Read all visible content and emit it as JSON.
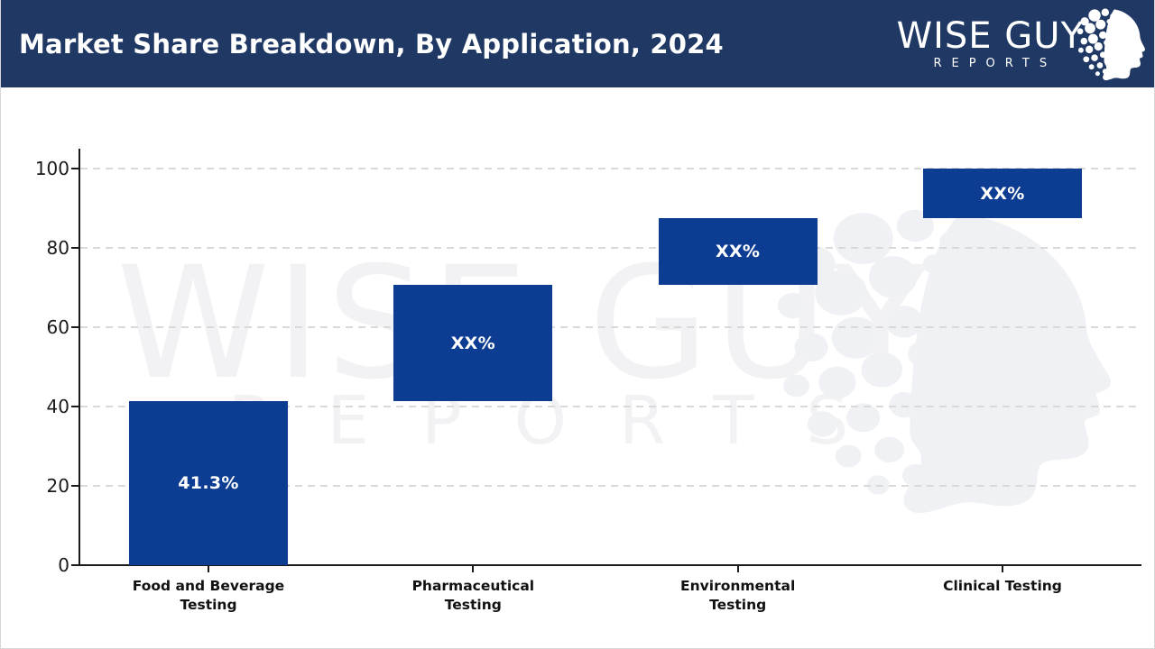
{
  "header": {
    "title": "Market Share Breakdown, By Application, 2024"
  },
  "logo": {
    "wordmark": "WISE GUY",
    "subtext": "REPORTS",
    "head_icon": "dotted-head-profile"
  },
  "watermark": {
    "line1": "WISE GUY",
    "line2": "REPORTS",
    "head_icon": "dotted-head-profile"
  },
  "colors": {
    "header_bg": "#203864",
    "bar": "#0d3d92",
    "bar_label": "#ffffff",
    "grid": "#d9d9d9",
    "axis": "#1a1a1a",
    "watermark": "#f2f2f5"
  },
  "chart_data": {
    "type": "bar",
    "subtype": "waterfall",
    "title": "Market Share Breakdown, By Application, 2024",
    "categories": [
      "Food and Beverage\nTesting",
      "Pharmaceutical\nTesting",
      "Environmental\nTesting",
      "Clinical Testing"
    ],
    "series": [
      {
        "name": "Market Share",
        "segments": [
          {
            "start": 0,
            "end": 41.3,
            "label": "41.3%"
          },
          {
            "start": 41.3,
            "end": 70.6,
            "label": "XX%"
          },
          {
            "start": 70.6,
            "end": 87.5,
            "label": "XX%"
          },
          {
            "start": 87.5,
            "end": 100,
            "label": "XX%"
          }
        ]
      }
    ],
    "xlabel": "",
    "ylabel": "",
    "ylim": [
      0,
      100
    ],
    "yticks": [
      0,
      20,
      40,
      60,
      80,
      100
    ],
    "grid": true,
    "legend": false
  }
}
